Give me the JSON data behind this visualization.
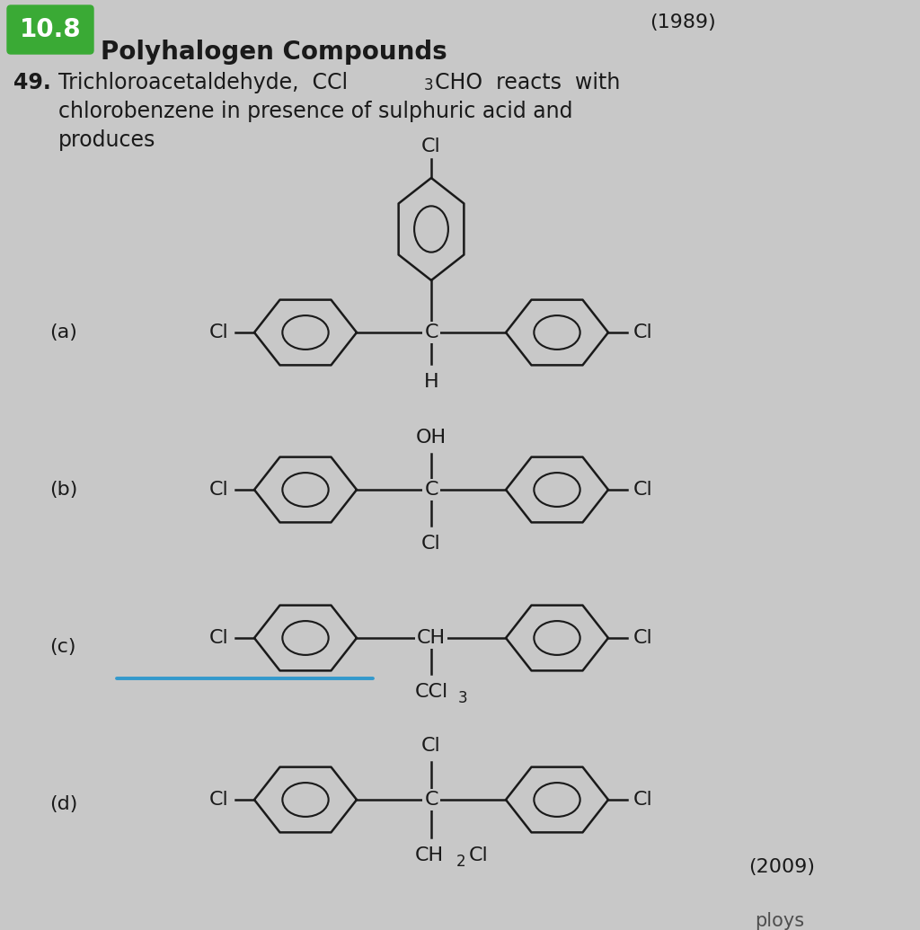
{
  "title_section": "10.8",
  "title_text": "Polyhalogen Compounds",
  "year_top": "(1989)",
  "question_num": "49.",
  "bg_color": "#c8c8c8",
  "text_color": "#1a1a1a",
  "green_bg": "#3aaa35",
  "year_bottom": "(2009)"
}
